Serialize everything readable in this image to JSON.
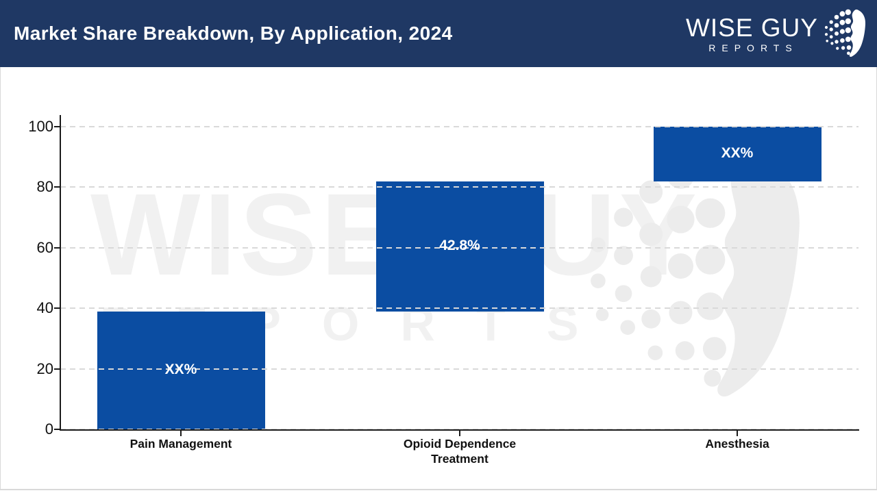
{
  "header": {
    "title": "Market Share Breakdown, By Application, 2024",
    "bg_color": "#1f3864",
    "logo": {
      "line1": "WISE GUY",
      "line2": "REPORTS",
      "icon": "face-profile-dots-icon"
    }
  },
  "watermark": {
    "line1": "WISE GUY",
    "line2": "REPORTS",
    "text_color": "#f1f1f1",
    "face_color": "#ececec",
    "icon": "face-profile-dots-icon"
  },
  "chart_data": {
    "type": "bar",
    "subtype": "waterfall",
    "title": "Market Share Breakdown, By Application, 2024",
    "categories": [
      "Pain Management",
      "Opioid Dependence Treatment",
      "Anesthesia"
    ],
    "bars": [
      {
        "category": "Pain Management",
        "start": 0,
        "end": 39,
        "label": "XX%"
      },
      {
        "category": "Opioid Dependence Treatment",
        "start": 39,
        "end": 81.8,
        "label": "42.8%"
      },
      {
        "category": "Anesthesia",
        "start": 81.8,
        "end": 100,
        "label": "XX%"
      }
    ],
    "y_ticks": [
      0,
      20,
      40,
      60,
      80,
      100
    ],
    "ylim": [
      0,
      100
    ],
    "xlabel": "",
    "ylabel": "",
    "grid": "dashed-horizontal",
    "legend": "none",
    "bar_color": "#0b4da2",
    "grid_color": "#d9d9d9",
    "axis_color": "#1a1a1a",
    "bar_label_color": "#ffffff"
  }
}
